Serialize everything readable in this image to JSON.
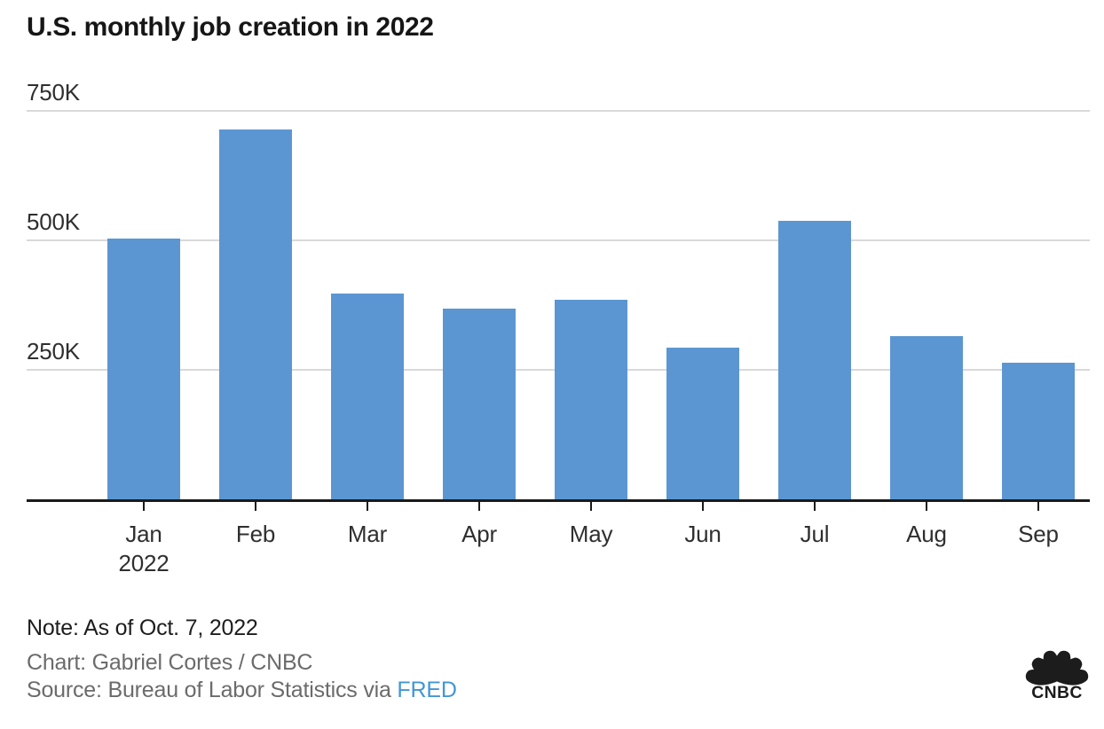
{
  "chart_data": {
    "type": "bar",
    "title": "U.S. monthly job creation in 2022",
    "categories": [
      "Jan",
      "Feb",
      "Mar",
      "Apr",
      "May",
      "Jun",
      "Jul",
      "Aug",
      "Sep"
    ],
    "category_sublabels": [
      "2022",
      "",
      "",
      "",
      "",
      "",
      "",
      "",
      ""
    ],
    "values_thousands": [
      504,
      714,
      398,
      368,
      386,
      293,
      537,
      315,
      263
    ],
    "unit": "thousands of jobs added per month",
    "ylim_thousands": [
      0,
      750
    ],
    "yticks": [
      {
        "value": 250,
        "label": "250K"
      },
      {
        "value": 500,
        "label": "500K"
      },
      {
        "value": 750,
        "label": "750K"
      }
    ],
    "grid": true,
    "legend": "none",
    "bar_color": "#5c96d2",
    "grid_color": "#d9d9d9",
    "axis_color": "#1a1a1a",
    "tick_label_color": "#2f2f2f"
  },
  "footer": {
    "note": "Note: As of Oct. 7, 2022",
    "credit": "Chart: Gabriel Cortes / CNBC",
    "source_prefix": "Source: Bureau of Labor Statistics via ",
    "source_link_label": "FRED",
    "link_color": "#4296d4"
  },
  "logo": {
    "brand": "CNBC",
    "wordmark": "CNBC",
    "color": "#1c1c1c"
  }
}
